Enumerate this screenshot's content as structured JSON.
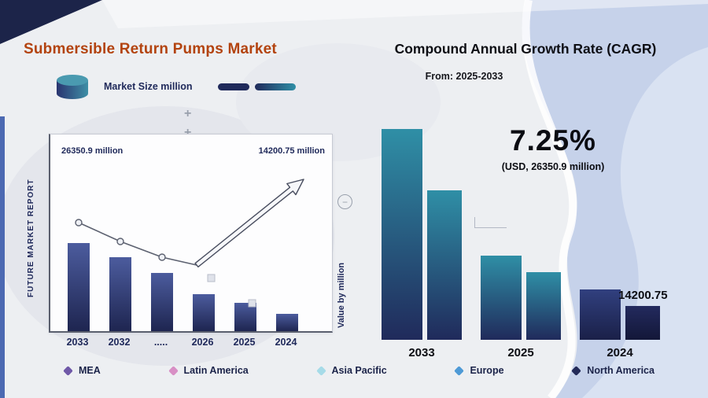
{
  "palette": {
    "navy": "#202a5b",
    "navy_dark": "#1c2449",
    "teal": "#2f8fa6",
    "title_orange": "#b3430f",
    "strip_blue": "#4c69b2",
    "lbar_top": "#4c5c9e",
    "lbar_bottom": "#1e2550"
  },
  "icons": {
    "minus_circle": "−",
    "plus": "+"
  },
  "left_panel": {
    "title": "Submersible Return Pumps Market",
    "legend_label": "Market Size million",
    "report_watermark": "FUTURE MARKET REPORT"
  },
  "right_panel": {
    "title": "Compound Annual Growth Rate (CAGR)",
    "subtitle": "From: 2025-2033",
    "cagr_value": "7.25%",
    "cagr_note": "(USD, 26350.9 million)",
    "value_callout": "14200.75"
  },
  "footer_legend": [
    {
      "label": "MEA",
      "color": "#6f58a8"
    },
    {
      "label": "Latin America",
      "color": "#d88fc5"
    },
    {
      "label": "Asia Pacific",
      "color": "#a6dbe8"
    },
    {
      "label": "Europe",
      "color": "#4e9ad6"
    },
    {
      "label": "North America",
      "color": "#232a58"
    }
  ],
  "chart_data": [
    {
      "type": "bar",
      "title": "Submersible Return Pumps Market",
      "legend": "Market Size million",
      "categories": [
        "2033",
        "2032",
        ".....",
        "2026",
        "2025",
        "2024"
      ],
      "values": [
        100,
        84,
        66,
        42,
        32,
        20
      ],
      "values_unit": "relative height % of tallest bar (y-axis unlabeled)",
      "annotations": [
        "26350.9 million",
        "14200.75 million"
      ],
      "xlabel": "",
      "ylabel": "Value by million",
      "overlay": "declining marker line with rising outlined trend arrow",
      "grid": false,
      "legend_position": "top-left"
    },
    {
      "type": "bar",
      "title": "Compound Annual Growth Rate (CAGR)",
      "subtitle": "From: 2025-2033",
      "categories": [
        "2033",
        "2025",
        "2024"
      ],
      "series": [
        {
          "name": "primary",
          "values": [
            100,
            40,
            24
          ]
        },
        {
          "name": "secondary",
          "values": [
            71,
            32,
            16
          ]
        }
      ],
      "values_unit": "relative height % of tallest bar (y-axis unlabeled)",
      "annotations": [
        "7.25%",
        "(USD, 26350.9 million)",
        "14200.75"
      ],
      "grid": false,
      "legend_position": "none"
    }
  ]
}
